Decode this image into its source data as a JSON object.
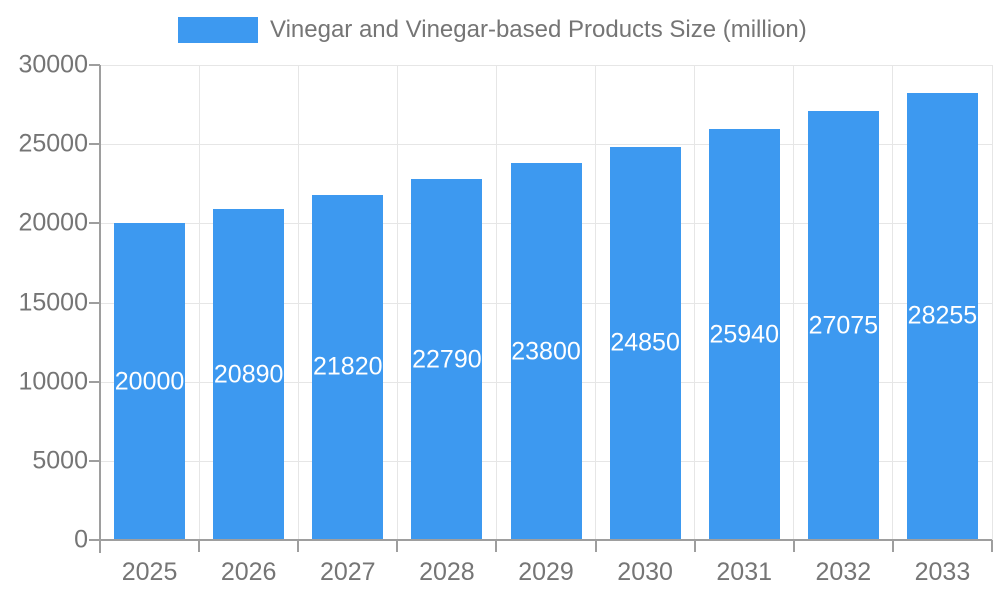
{
  "chart_data": {
    "type": "bar",
    "title": "Vinegar and Vinegar-based Products Size (million)",
    "legend": "Vinegar and Vinegar-based Products Size (million)",
    "legend_position": "top",
    "categories": [
      "2025",
      "2026",
      "2027",
      "2028",
      "2029",
      "2030",
      "2031",
      "2032",
      "2033"
    ],
    "values": [
      20000,
      20890,
      21820,
      22790,
      23800,
      24850,
      25940,
      27075,
      28255
    ],
    "xlabel": "",
    "ylabel": "",
    "ylim": [
      0,
      30000
    ],
    "ytick_step": 5000,
    "yticks": [
      0,
      5000,
      10000,
      15000,
      20000,
      25000,
      30000
    ],
    "grid": true,
    "bar_labels_inside": true
  },
  "colors": {
    "bar": "#3D99F0",
    "bar_label": "#FFFFFF",
    "axis_text": "#757575",
    "legend_text": "#757575",
    "gridline": "#E6E6E6",
    "axis_line": "#9E9E9E",
    "background": "#FFFFFF"
  }
}
